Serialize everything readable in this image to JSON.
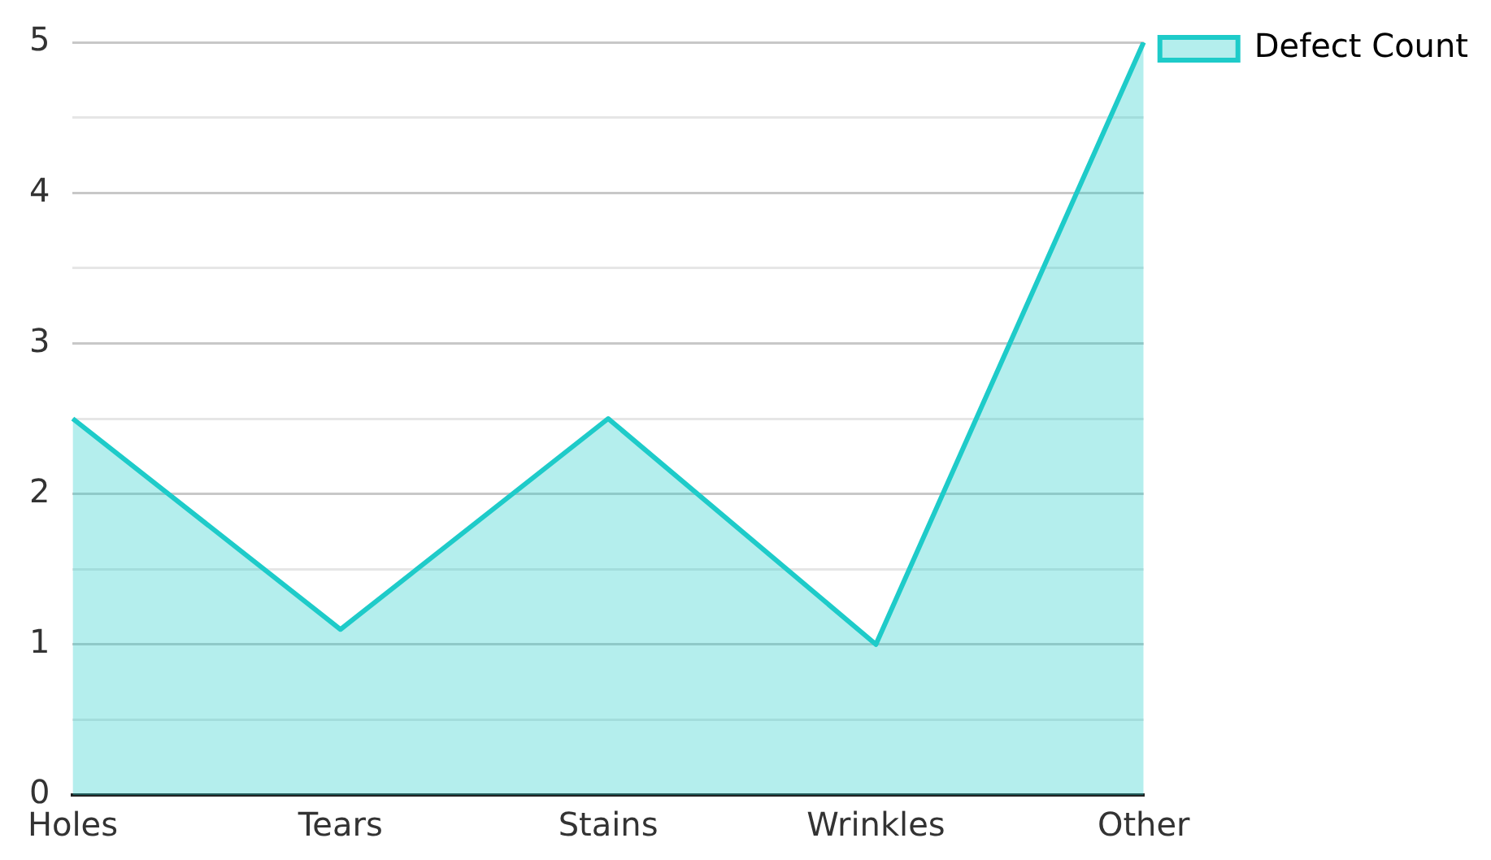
{
  "chart_data": {
    "type": "area",
    "categories": [
      "Holes",
      "Tears",
      "Stains",
      "Wrinkles",
      "Other"
    ],
    "series": [
      {
        "name": "Defect Count",
        "color": "#1ecbc9",
        "values": [
          2.5,
          1.1,
          2.5,
          1.0,
          5
        ]
      }
    ],
    "ylim": [
      0,
      5
    ],
    "yticks": [
      0,
      {
        "value": 0.5,
        "label": null
      },
      1,
      {
        "value": 1.5,
        "label": null
      },
      2,
      {
        "value": 2.5,
        "label": null
      },
      3,
      {
        "value": 3.5,
        "label": null
      },
      4,
      {
        "value": 4.5,
        "label": null
      },
      5
    ],
    "grid": "y",
    "legend": "top right",
    "marker": "none",
    "line_style": "solid"
  }
}
